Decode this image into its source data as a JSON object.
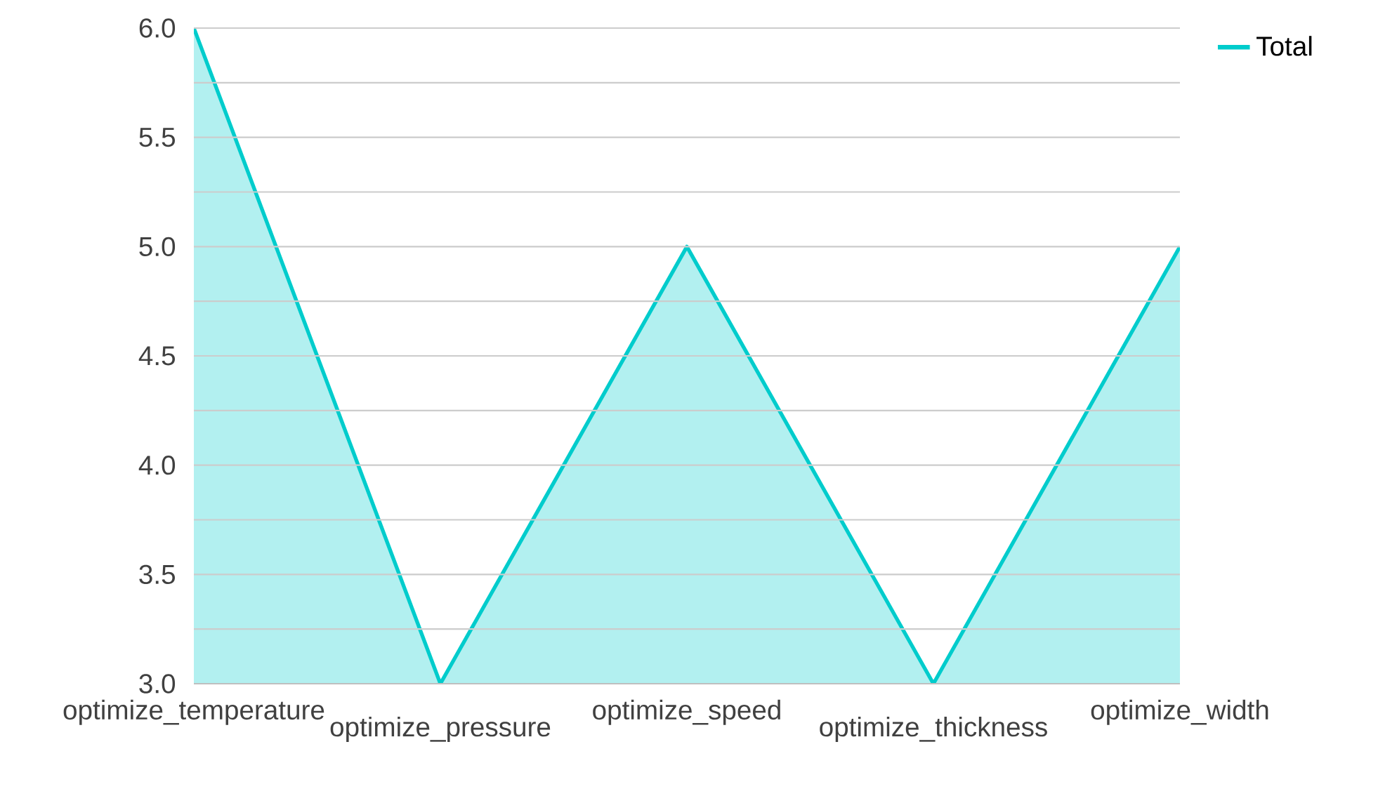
{
  "chart_data": {
    "type": "area",
    "categories": [
      "optimize_temperature",
      "optimize_pressure",
      "optimize_speed",
      "optimize_thickness",
      "optimize_width"
    ],
    "series": [
      {
        "name": "Total",
        "color": "#00cccc",
        "values": [
          6,
          3,
          5,
          3,
          5
        ]
      }
    ],
    "ylim": [
      3,
      6
    ],
    "yticks": [
      {
        "value": 3,
        "label": "3.0"
      },
      {
        "value": 3.25,
        "label": null
      },
      {
        "value": 3.5,
        "label": "3.5"
      },
      {
        "value": 3.75,
        "label": null
      },
      {
        "value": 4,
        "label": "4.0"
      },
      {
        "value": 4.25,
        "label": null
      },
      {
        "value": 4.5,
        "label": "4.5"
      },
      {
        "value": 4.75,
        "label": null
      },
      {
        "value": 5,
        "label": "5.0"
      },
      {
        "value": 5.25,
        "label": null
      },
      {
        "value": 5.5,
        "label": "5.5"
      },
      {
        "value": 5.75,
        "label": null
      },
      {
        "value": 6,
        "label": "6.0"
      }
    ],
    "grid": "y",
    "legend": "top right"
  }
}
